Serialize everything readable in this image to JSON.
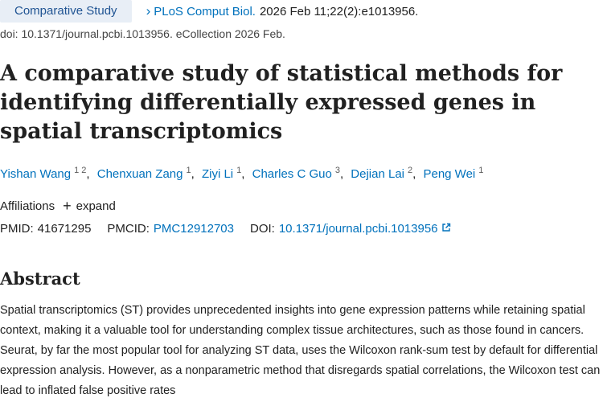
{
  "header": {
    "badge": "Comparative Study",
    "journal": "PLoS Comput Biol.",
    "citation": "2026 Feb 11;22(2):e1013956.",
    "doi_line": "doi: 10.1371/journal.pcbi.1013956. eCollection 2026 Feb."
  },
  "title": "A comparative study of statistical methods for identifying differentially expressed genes in spatial transcriptomics",
  "authors": [
    {
      "name": "Yishan Wang",
      "sup": "1 2"
    },
    {
      "name": "Chenxuan Zang",
      "sup": "1"
    },
    {
      "name": "Ziyi Li",
      "sup": "1"
    },
    {
      "name": "Charles C Guo",
      "sup": "3"
    },
    {
      "name": "Dejian Lai",
      "sup": "2"
    },
    {
      "name": "Peng Wei",
      "sup": "1"
    }
  ],
  "affiliations": {
    "label": "Affiliations",
    "expand": "expand"
  },
  "ids": {
    "pmid_label": "PMID:",
    "pmid": "41671295",
    "pmcid_label": "PMCID:",
    "pmcid": "PMC12912703",
    "doi_label": "DOI:",
    "doi": "10.1371/journal.pcbi.1013956"
  },
  "abstract": {
    "heading": "Abstract",
    "text": "Spatial transcriptomics (ST) provides unprecedented insights into gene expression patterns while retaining spatial context, making it a valuable tool for understanding complex tissue architectures, such as those found in cancers. Seurat, by far the most popular tool for analyzing ST data, uses the Wilcoxon rank-sum test by default for differential expression analysis. However, as a nonparametric method that disregards spatial correlations, the Wilcoxon test can lead to inflated false positive rates"
  },
  "colors": {
    "link": "#0071bc",
    "badge_bg": "#e8eef6"
  }
}
